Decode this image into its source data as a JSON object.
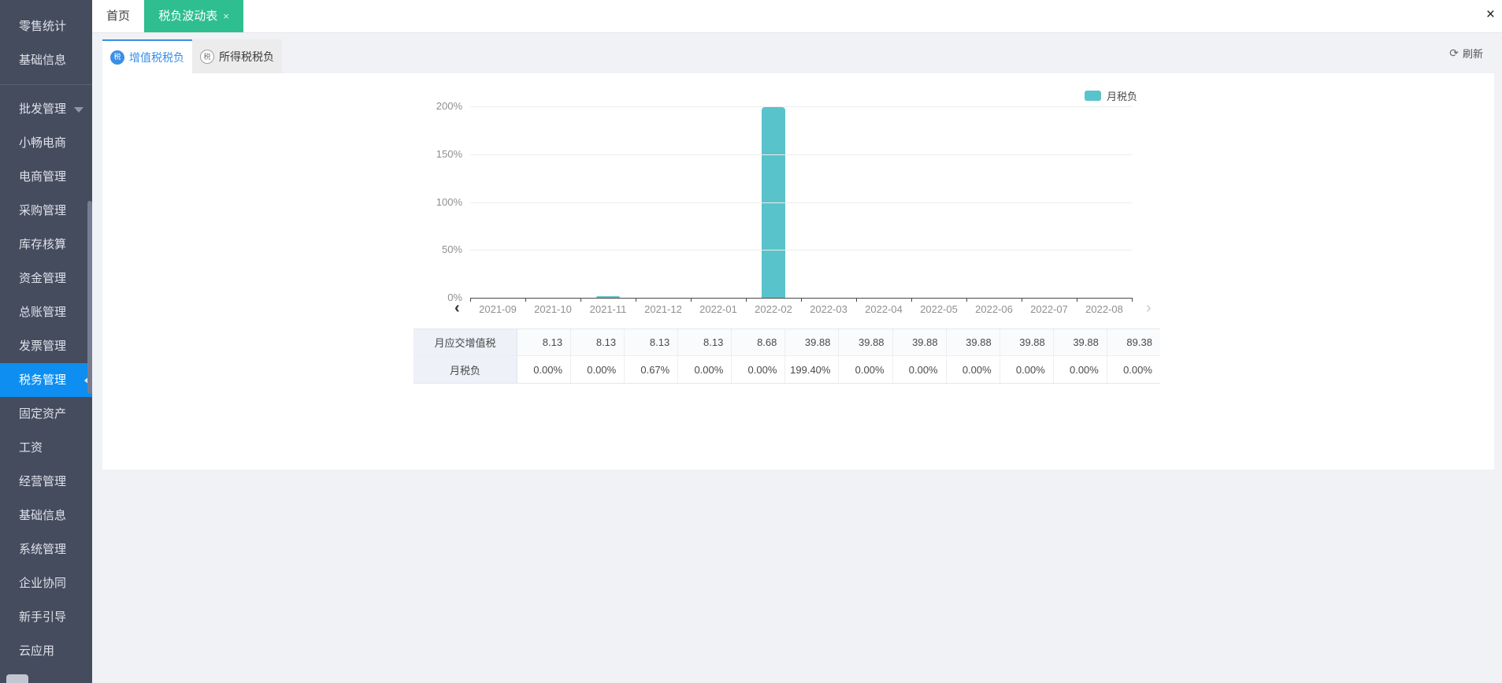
{
  "colors": {
    "sidebar_bg": "#454c5e",
    "accent_blue": "#0d8ef0",
    "tab_green": "#2ebe8f",
    "inner_tab_blue": "#3a8ee6",
    "bar_teal": "#58c3cb",
    "page_bg": "#f0f2f6"
  },
  "sidebar": {
    "items": [
      {
        "label": "零售统计"
      },
      {
        "label": "基础信息"
      },
      {
        "divider": true
      },
      {
        "label": "批发管理",
        "has_dropdown": true
      },
      {
        "label": "小畅电商"
      },
      {
        "label": "电商管理"
      },
      {
        "label": "采购管理"
      },
      {
        "label": "库存核算"
      },
      {
        "label": "资金管理"
      },
      {
        "label": "总账管理"
      },
      {
        "label": "发票管理"
      },
      {
        "label": "税务管理",
        "active": true
      },
      {
        "label": "固定资产"
      },
      {
        "label": "工资"
      },
      {
        "label": "经营管理"
      },
      {
        "label": "基础信息"
      },
      {
        "label": "系统管理"
      },
      {
        "label": "企业协同"
      },
      {
        "label": "新手引导"
      },
      {
        "label": "云应用"
      }
    ]
  },
  "tabbar": {
    "home_label": "首页",
    "active_label": "税负波动表",
    "tab_close_icon": "×",
    "window_close_icon": "×"
  },
  "content_tabs": {
    "vat": {
      "label": "增值税税负",
      "icon_text": "税"
    },
    "income": {
      "label": "所得税税负",
      "icon_text": "税"
    }
  },
  "toolbar": {
    "refresh_label": "刷新",
    "refresh_icon": "⟳"
  },
  "chart_data": {
    "type": "bar",
    "title": "",
    "categories": [
      "2021-09",
      "2021-10",
      "2021-11",
      "2021-12",
      "2022-01",
      "2022-02",
      "2022-03",
      "2022-04",
      "2022-05",
      "2022-06",
      "2022-07",
      "2022-08"
    ],
    "series": [
      {
        "name": "月税负",
        "unit": "%",
        "color": "#58c3cb",
        "values": [
          0,
          0,
          0.67,
          0,
          0,
          199.4,
          0,
          0,
          0,
          0,
          0,
          0
        ]
      }
    ],
    "ylabel": "",
    "xlabel": "",
    "ylim": [
      0,
      200
    ],
    "yticks": [
      {
        "label": "0%",
        "value": 0
      },
      {
        "label": "50%",
        "value": 50
      },
      {
        "label": "100%",
        "value": 100
      },
      {
        "label": "150%",
        "value": 150
      },
      {
        "label": "200%",
        "value": 200
      }
    ],
    "grid": true,
    "legend_position": "top-right",
    "legend": [
      {
        "name": "月税负",
        "color": "#58c3cb"
      }
    ],
    "pager": {
      "prev": "‹",
      "next": "›"
    }
  },
  "table": {
    "rows": [
      {
        "header": "月应交增值税",
        "values": [
          "8.13",
          "8.13",
          "8.13",
          "8.13",
          "8.68",
          "39.88",
          "39.88",
          "39.88",
          "39.88",
          "39.88",
          "39.88",
          "89.38"
        ]
      },
      {
        "header": "月税负",
        "values": [
          "0.00%",
          "0.00%",
          "0.67%",
          "0.00%",
          "0.00%",
          "199.40%",
          "0.00%",
          "0.00%",
          "0.00%",
          "0.00%",
          "0.00%",
          "0.00%"
        ]
      }
    ]
  }
}
